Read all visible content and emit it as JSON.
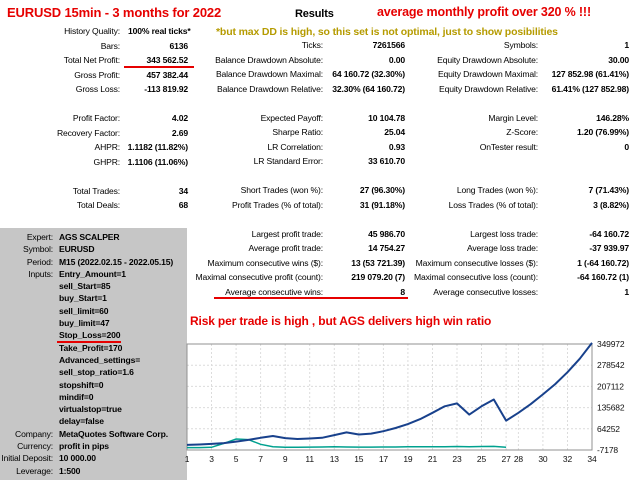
{
  "header": {
    "title": "EURUSD 15min - 3 months  for 2022",
    "results_label": "Results",
    "profit_note": "average monthly profit over 320 % !!!",
    "dd_note": "*but max DD is high, so this set is not optimal, just to show posibilities",
    "risk_note": "Risk per trade is high , but AGS delivers high win ratio"
  },
  "colors": {
    "annotation_red": "#e60000",
    "note_yellow": "#b59b00",
    "sidebar_bg": "#c6c6c6",
    "balance_line": "#18418c",
    "equity_line": "#00a18f",
    "grid_line": "#dcdcdc",
    "axis_border": "#909090",
    "axis_text": "#111111"
  },
  "stats": {
    "col1": [
      {
        "label": "History Quality:",
        "value": "100% real ticks*",
        "wide": true
      },
      {
        "label": "Bars:",
        "value": "6136"
      },
      {
        "label": "Total Net Profit:",
        "value": "343 562.52"
      },
      {
        "label": "Gross Profit:",
        "value": "457 382.44"
      },
      {
        "label": "Gross Loss:",
        "value": "-113 819.92"
      },
      {
        "label": "",
        "value": ""
      },
      {
        "label": "Profit Factor:",
        "value": "4.02"
      },
      {
        "label": "Recovery Factor:",
        "value": "2.69"
      },
      {
        "label": "AHPR:",
        "value": "1.1182 (11.82%)"
      },
      {
        "label": "GHPR:",
        "value": "1.1106 (11.06%)"
      },
      {
        "label": "",
        "value": ""
      },
      {
        "label": "Total Trades:",
        "value": "34"
      },
      {
        "label": "Total Deals:",
        "value": "68"
      }
    ],
    "col2": [
      {
        "label": "Ticks:",
        "value": "7261566"
      },
      {
        "label": "Balance Drawdown Absolute:",
        "value": "0.00"
      },
      {
        "label": "Balance Drawdown Maximal:",
        "value": "64 160.72 (32.30%)"
      },
      {
        "label": "Balance Drawdown Relative:",
        "value": "32.30% (64 160.72)"
      },
      {
        "label": "",
        "value": ""
      },
      {
        "label": "Expected Payoff:",
        "value": "10 104.78"
      },
      {
        "label": "Sharpe Ratio:",
        "value": "25.04"
      },
      {
        "label": "LR Correlation:",
        "value": "0.93"
      },
      {
        "label": "LR Standard Error:",
        "value": "33 610.70"
      },
      {
        "label": "",
        "value": ""
      },
      {
        "label": "Short Trades (won %):",
        "value": "27 (96.30%)"
      },
      {
        "label": "Profit Trades (% of total):",
        "value": "31 (91.18%)"
      },
      {
        "label": "",
        "value": ""
      },
      {
        "label": "Largest profit trade:",
        "value": "45 986.70"
      },
      {
        "label": "Average profit trade:",
        "value": "14 754.27"
      },
      {
        "label": "Maximum consecutive wins ($):",
        "value": "13 (53 721.39)"
      },
      {
        "label": "Maximal consecutive profit (count):",
        "value": "219 079.20 (7)"
      },
      {
        "label": "Average consecutive wins:",
        "value": "8"
      }
    ],
    "col3": [
      {
        "label": "Symbols:",
        "value": "1"
      },
      {
        "label": "Equity Drawdown Absolute:",
        "value": "30.00"
      },
      {
        "label": "Equity Drawdown Maximal:",
        "value": "127 852.98 (61.41%)"
      },
      {
        "label": "Equity Drawdown Relative:",
        "value": "61.41% (127 852.98)"
      },
      {
        "label": "",
        "value": ""
      },
      {
        "label": "Margin Level:",
        "value": "146.28%"
      },
      {
        "label": "Z-Score:",
        "value": "1.20 (76.99%)"
      },
      {
        "label": "OnTester result:",
        "value": "0"
      },
      {
        "label": "",
        "value": ""
      },
      {
        "label": "",
        "value": ""
      },
      {
        "label": "Long Trades (won %):",
        "value": "7 (71.43%)"
      },
      {
        "label": "Loss Trades (% of total):",
        "value": "3 (8.82%)"
      },
      {
        "label": "",
        "value": ""
      },
      {
        "label": "Largest loss trade:",
        "value": "-64 160.72"
      },
      {
        "label": "Average loss trade:",
        "value": "-37 939.97"
      },
      {
        "label": "Maximum consecutive losses ($):",
        "value": "1 (-64 160.72)"
      },
      {
        "label": "Maximal consecutive loss (count):",
        "value": "-64 160.72 (1)"
      },
      {
        "label": "Average consecutive losses:",
        "value": "1"
      }
    ]
  },
  "sidebar": {
    "rows": [
      {
        "label": "Expert:",
        "value": "AGS SCALPER"
      },
      {
        "label": "Symbol:",
        "value": "EURUSD"
      },
      {
        "label": "Period:",
        "value": "M15 (2022.02.15 - 2022.05.15)"
      },
      {
        "label": "Inputs:",
        "value": "Entry_Amount=1"
      },
      {
        "label": "",
        "value": "sell_Start=85"
      },
      {
        "label": "",
        "value": "buy_Start=1"
      },
      {
        "label": "",
        "value": "sell_limit=60"
      },
      {
        "label": "",
        "value": "buy_limit=47"
      },
      {
        "label": "",
        "value": "Stop_Loss=200"
      },
      {
        "label": "",
        "value": "Take_Profit=170"
      },
      {
        "label": "",
        "value": "Advanced_settings="
      },
      {
        "label": "",
        "value": "sell_stop_ratio=1.6"
      },
      {
        "label": "",
        "value": "stopshift=0"
      },
      {
        "label": "",
        "value": "mindif=0"
      },
      {
        "label": "",
        "value": "virtualstop=true"
      },
      {
        "label": "",
        "value": "delay=false"
      },
      {
        "label": "Company:",
        "value": "MetaQuotes Software Corp."
      },
      {
        "label": "Currency:",
        "value": "profit in pips"
      },
      {
        "label": "Initial Deposit:",
        "value": "10 000.00"
      },
      {
        "label": "Leverage:",
        "value": "1:500"
      }
    ]
  },
  "chart_data": {
    "type": "line",
    "title": "",
    "xlabel": "",
    "ylabel": "",
    "x_ticks": [
      1,
      3,
      5,
      7,
      9,
      11,
      13,
      15,
      17,
      19,
      21,
      23,
      25,
      27,
      28,
      30,
      32,
      34
    ],
    "y_ticks": [
      349972,
      278542,
      207112,
      135682,
      64252,
      -7178
    ],
    "xlim": [
      1,
      34
    ],
    "ylim": [
      -7178,
      349972
    ],
    "grid": true,
    "legend_position": "none",
    "series": [
      {
        "name": "balance",
        "values": [
          10000,
          11500,
          13500,
          16000,
          21000,
          27000,
          34000,
          40000,
          33000,
          30000,
          31500,
          34000,
          43000,
          52000,
          45000,
          48000,
          56000,
          67000,
          80000,
          97000,
          118000,
          140000,
          150000,
          112000,
          140000,
          163000,
          92000,
          118000,
          147000,
          180000,
          215000,
          255000,
          300000,
          353562
        ]
      },
      {
        "name": "equity-low",
        "values": [
          1000,
          1000,
          2000,
          15000,
          30000,
          28000,
          12000,
          4000,
          2000,
          2000,
          2500,
          3000,
          3500,
          3000,
          2500,
          2500,
          3000,
          3000,
          3500,
          3500,
          4000,
          4000,
          4500,
          4000,
          4500,
          5000,
          2000
        ]
      }
    ]
  }
}
